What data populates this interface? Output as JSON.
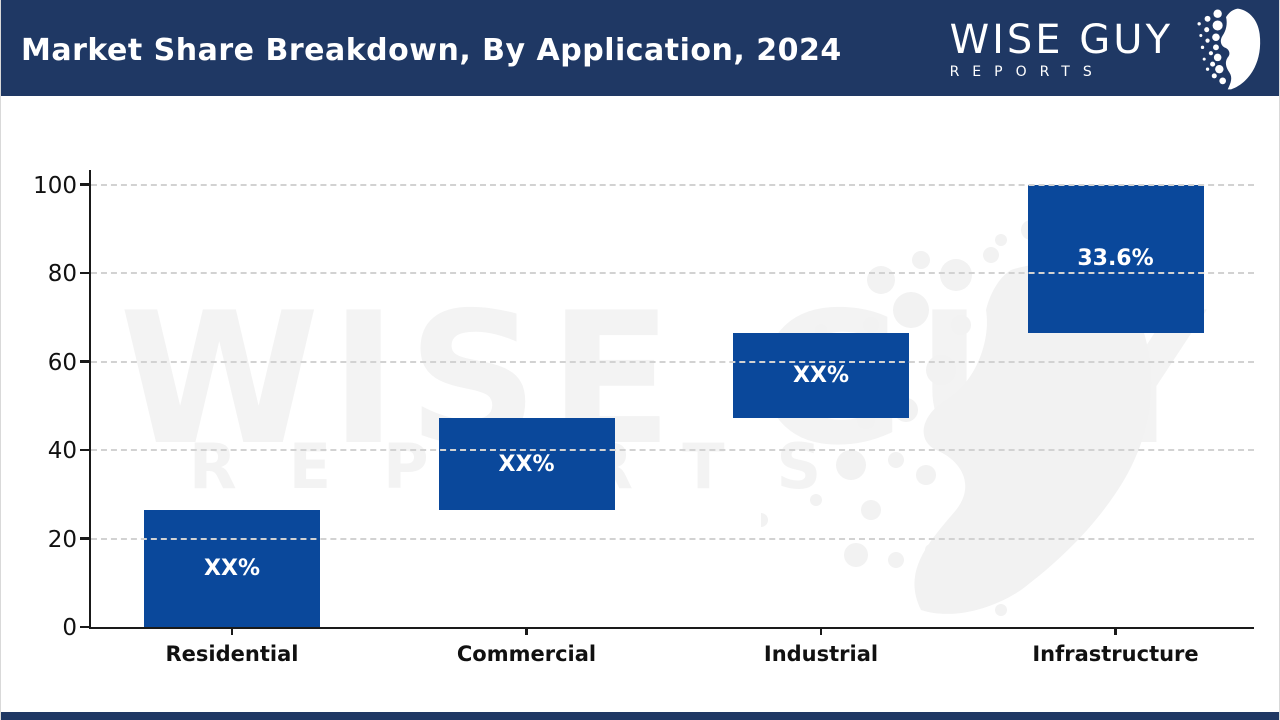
{
  "header": {
    "title": "Market Share Breakdown, By Application, 2024",
    "bg_color": "#1f3864",
    "logo": {
      "line1": "WISE GUY",
      "line2": "REPORTS"
    }
  },
  "watermark": {
    "line1": "WISE GUY",
    "line2": "REPORTS"
  },
  "chart_data": {
    "type": "bar",
    "subtype": "waterfall",
    "title": "Market Share Breakdown, By Application, 2024",
    "categories": [
      "Residential",
      "Commercial",
      "Industrial",
      "Infrastructure"
    ],
    "segments": [
      {
        "category": "Residential",
        "start": 0,
        "end": 26.4,
        "label": "XX%"
      },
      {
        "category": "Commercial",
        "start": 26.4,
        "end": 47.2,
        "label": "XX%"
      },
      {
        "category": "Industrial",
        "start": 47.2,
        "end": 66.4,
        "label": "XX%"
      },
      {
        "category": "Infrastructure",
        "start": 66.4,
        "end": 100,
        "label": "33.6%"
      }
    ],
    "values": [
      26.4,
      20.8,
      19.2,
      33.6
    ],
    "yticks": [
      0,
      20,
      40,
      60,
      80,
      100
    ],
    "ylim": [
      0,
      103
    ],
    "xlabel": "",
    "ylabel": "",
    "grid": "dashed-horizontal-over-bars",
    "legend": "none",
    "bar_color": "#0a489b",
    "bar_label_color": "#ffffff",
    "axis_color": "#1a1a1a"
  }
}
